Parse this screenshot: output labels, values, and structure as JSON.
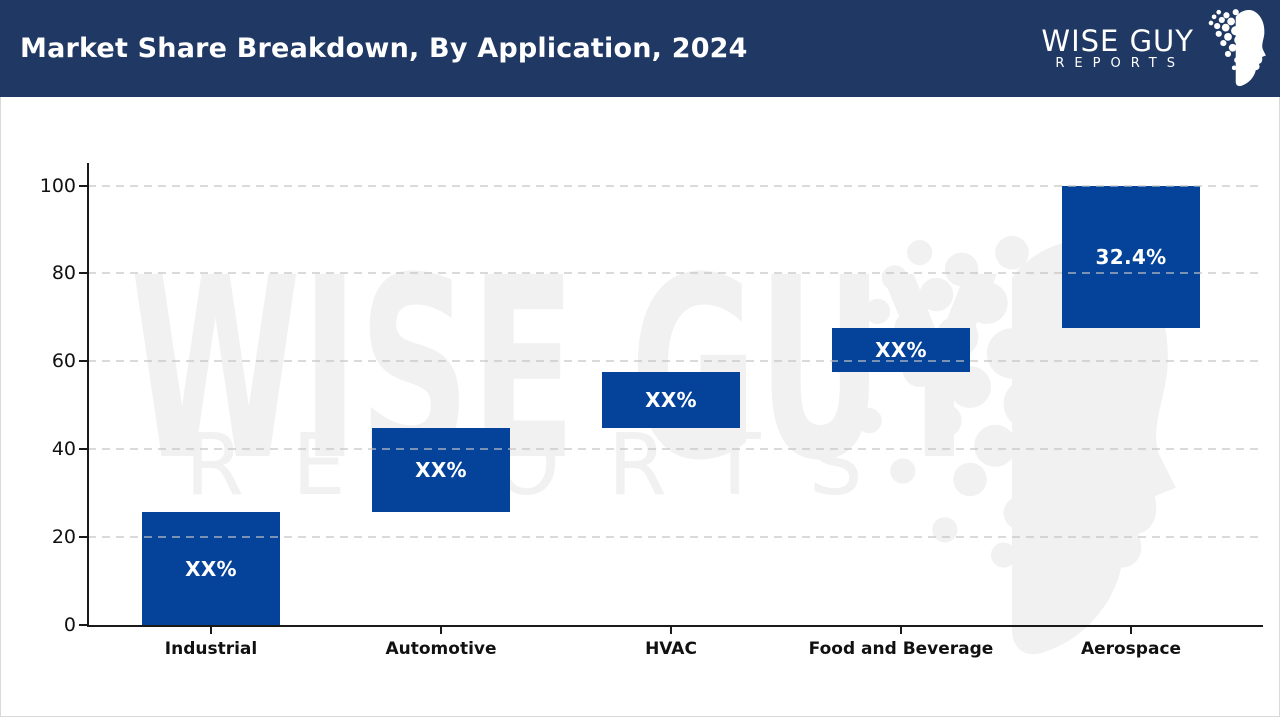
{
  "header": {
    "title": "Market Share Breakdown, By Application, 2024",
    "logo": {
      "line1": "WISE GUY",
      "line2": "REPORTS"
    }
  },
  "watermark": {
    "line1": "WISE GUY",
    "line2": "REPORTS"
  },
  "chart_data": {
    "type": "bar",
    "subtype": "waterfall",
    "title": "Market Share Breakdown, By Application, 2024",
    "categories": [
      "Industrial",
      "Automotive",
      "HVAC",
      "Food and Beverage",
      "Aerospace"
    ],
    "segments": [
      {
        "category": "Industrial",
        "start": 0,
        "end": 25.6,
        "label": "XX%"
      },
      {
        "category": "Automotive",
        "start": 25.6,
        "end": 44.8,
        "label": "XX%"
      },
      {
        "category": "HVAC",
        "start": 44.8,
        "end": 57.6,
        "label": "XX%"
      },
      {
        "category": "Food and Beverage",
        "start": 57.6,
        "end": 67.6,
        "label": "XX%"
      },
      {
        "category": "Aerospace",
        "start": 67.6,
        "end": 100,
        "label": "32.4%"
      }
    ],
    "ylim": [
      0,
      100
    ],
    "yticks": [
      0,
      20,
      40,
      60,
      80,
      100
    ],
    "xlabel": "",
    "ylabel": "",
    "grid": "horizontal-dashed-over-bars",
    "legend": "none",
    "bar_color": "#05439b",
    "bar_label_color": "#ffffff",
    "axis_color": "#1a1a1a",
    "header_color": "#1f3864"
  }
}
